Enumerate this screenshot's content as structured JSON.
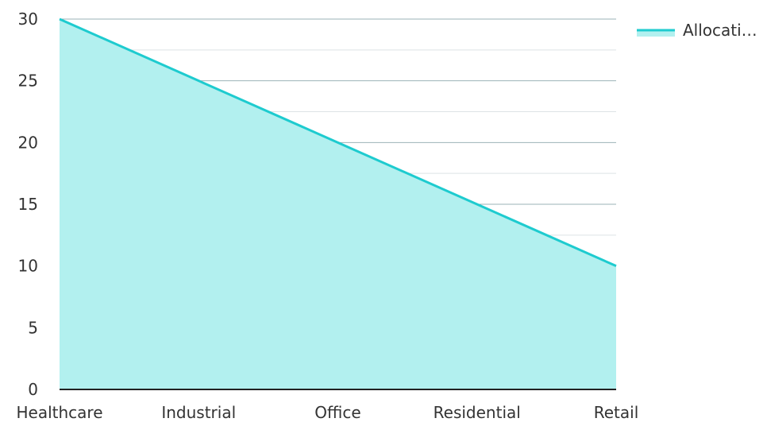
{
  "chart_data": {
    "type": "area",
    "title": "",
    "xlabel": "",
    "ylabel": "",
    "categories": [
      "Healthcare",
      "Industrial",
      "Office",
      "Residential",
      "Retail"
    ],
    "series": [
      {
        "name": "Allocati…",
        "values": [
          30,
          25,
          20,
          15,
          10
        ]
      }
    ],
    "ylim": [
      0,
      30
    ],
    "y_ticks": [
      0,
      5,
      10,
      15,
      20,
      25,
      30
    ],
    "grid": true,
    "legend": "top-right",
    "colors": {
      "line": "#1ecbcf",
      "fill": "#b2f0ef",
      "grid_major": "#9bb3b7",
      "grid_minor": "#dde3e5",
      "axis": "#222222"
    }
  }
}
